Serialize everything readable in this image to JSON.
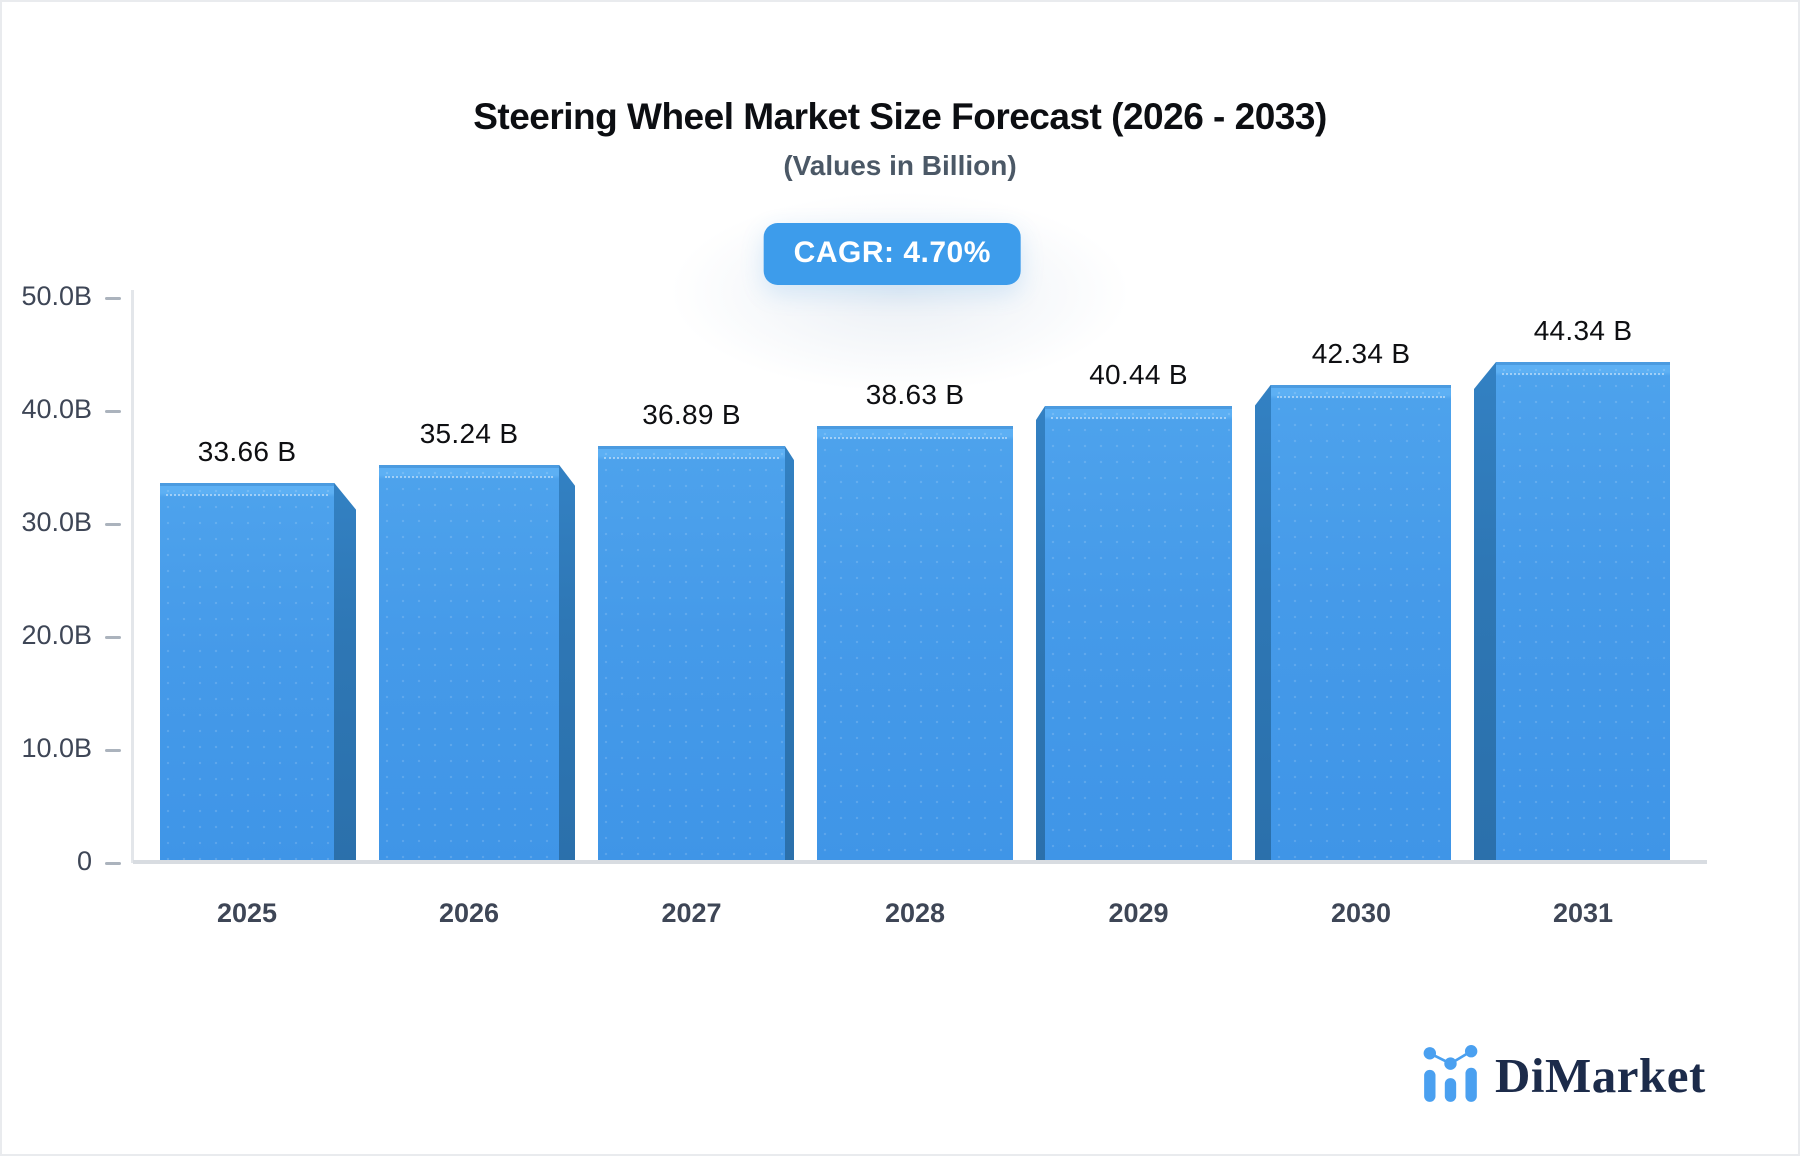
{
  "header": {
    "title": "Steering Wheel Market Size Forecast (2026 - 2033)",
    "subtitle": "(Values in Billion)",
    "cagr_badge": "CAGR: 4.70%"
  },
  "chart_data": {
    "type": "bar",
    "title": "Steering Wheel Market Size Forecast (2026 - 2033)",
    "subtitle": "(Values in Billion)",
    "annotation": "CAGR: 4.70%",
    "categories": [
      "2025",
      "2026",
      "2027",
      "2028",
      "2029",
      "2030",
      "2031"
    ],
    "values": [
      33.66,
      35.24,
      36.89,
      38.63,
      40.44,
      42.34,
      44.34
    ],
    "value_labels": [
      "33.66 B",
      "35.24 B",
      "36.89 B",
      "38.63 B",
      "40.44 B",
      "42.34 B",
      "44.34 B"
    ],
    "y_ticks": [
      {
        "label": "50.0B",
        "value": 50
      },
      {
        "label": "40.0B",
        "value": 40
      },
      {
        "label": "30.0B",
        "value": 30
      },
      {
        "label": "20.0B",
        "value": 20
      },
      {
        "label": "10.0B",
        "value": 10
      },
      {
        "label": "0",
        "value": 0
      }
    ],
    "ylim": [
      0,
      50
    ],
    "grid": false,
    "legend": false,
    "bar_style": "3d-pseudo-perspective",
    "colors": {
      "bar_fill": "#459ae9",
      "bar_top_highlight": "#5db0f4",
      "bar_side_shade": "#2e77b5",
      "badge_background": "#3d9ceb",
      "badge_text": "#ffffff",
      "axis_text": "#3e4656",
      "axis_line": "#e3e6ea",
      "baseline": "#d8dce1",
      "title_text": "#0c0e12",
      "subtitle_text": "#4b5866",
      "value_text": "#0e0f12"
    }
  },
  "branding": {
    "logo_text": "DiMarket",
    "logo_icon": "bar-chart-logo-icon",
    "logo_icon_color": "#4aa0f0",
    "logo_text_color": "#1c2b4a"
  }
}
